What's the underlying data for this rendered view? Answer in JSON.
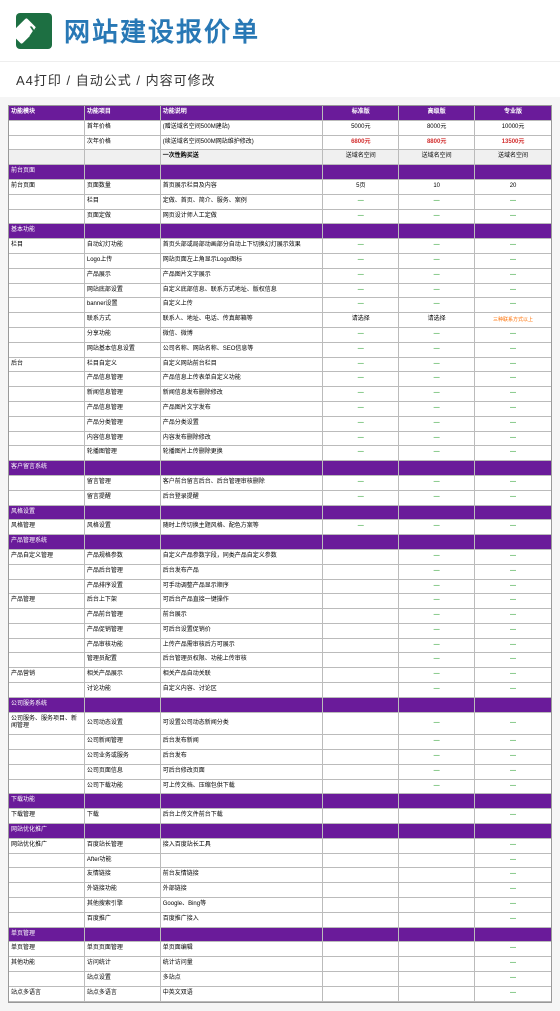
{
  "header": {
    "title": "网站建设报价单",
    "subtitle": "A4打印 / 自动公式 / 内容可修改"
  },
  "cols": [
    "功能模块",
    "功能项目",
    "功能说明",
    "标准版",
    "高级版",
    "专业版"
  ],
  "toprow1": {
    "c2": "首年价格",
    "c3": "(赠送域名空间500M建站)",
    "c4": "5000元",
    "c5": "8000元",
    "c6": "10000元"
  },
  "toprow2": {
    "c2": "次年价格",
    "c3": "(续送域名空间500M网站维护修改)",
    "c4": "6800元",
    "c5": "8800元",
    "c6": "13500元"
  },
  "toprow3": {
    "c2": "",
    "c3": "一次性购买送",
    "c4": "送域名空间",
    "c5": "送域名空间",
    "c6": "送域名空间"
  },
  "sections": [
    {
      "name": "前台页面",
      "rows": [
        {
          "m": "前台页面",
          "f": "页面数量",
          "d": "首页展示栏目及内容",
          "v": [
            "5页",
            "10",
            "20"
          ]
        },
        {
          "m": "",
          "f": "栏目",
          "d": "定做、首页、简介、服务、案例",
          "v": [
            "—",
            "—",
            "—"
          ]
        },
        {
          "m": "",
          "f": "页面定做",
          "d": "网页设计师人工定做",
          "v": [
            "—",
            "—",
            "—"
          ]
        }
      ]
    },
    {
      "name": "基本功能",
      "rows": [
        {
          "m": "栏目",
          "f": "自动幻灯功能",
          "d": "首页头部或局部动画部分自动上下切换幻灯展示效果",
          "v": [
            "—",
            "—",
            "—"
          ]
        },
        {
          "m": "",
          "f": "Logo上传",
          "d": "网站页面左上角显示Logo图标",
          "v": [
            "—",
            "—",
            "—"
          ]
        },
        {
          "m": "",
          "f": "产品展示",
          "d": "产品图片文字展示",
          "v": [
            "—",
            "—",
            "—"
          ]
        },
        {
          "m": "",
          "f": "网站底部设置",
          "d": "自定义底部信息、联系方式地址、版权信息",
          "v": [
            "—",
            "—",
            "—"
          ]
        },
        {
          "m": "",
          "f": "banner设置",
          "d": "自定义上传",
          "v": [
            "—",
            "—",
            "—"
          ]
        },
        {
          "m": "",
          "f": "联系方式",
          "d": "联系人、地址、电话、传真邮箱等",
          "v": [
            "请选择",
            "请选择",
            "三种联系方式以上"
          ]
        },
        {
          "m": "",
          "f": "分享功能",
          "d": "微信、微博",
          "v": [
            "—",
            "—",
            "—"
          ]
        },
        {
          "m": "",
          "f": "网站基本信息设置",
          "d": "公司名称、网站名称、SEO信息等",
          "v": [
            "—",
            "—",
            "—"
          ]
        },
        {
          "m": "后台",
          "f": "栏目自定义",
          "d": "自定义网站前台栏目",
          "v": [
            "—",
            "—",
            "—"
          ]
        },
        {
          "m": "",
          "f": "产品信息管理",
          "d": "产品信息上传表单自定义功能",
          "v": [
            "—",
            "—",
            "—"
          ]
        },
        {
          "m": "",
          "f": "新闻信息管理",
          "d": "新闻信息发布删除修改",
          "v": [
            "—",
            "—",
            "—"
          ]
        },
        {
          "m": "",
          "f": "产品信息管理",
          "d": "产品图片文字发布",
          "v": [
            "—",
            "—",
            "—"
          ]
        },
        {
          "m": "",
          "f": "产品分类管理",
          "d": "产品分类设置",
          "v": [
            "—",
            "—",
            "—"
          ]
        },
        {
          "m": "",
          "f": "内容信息管理",
          "d": "内容发布删除修改",
          "v": [
            "—",
            "—",
            "—"
          ]
        },
        {
          "m": "",
          "f": "轮播图管理",
          "d": "轮播图片上传删除更换",
          "v": [
            "—",
            "—",
            "—"
          ]
        }
      ]
    },
    {
      "name": "客户留言系统",
      "rows": [
        {
          "m": "",
          "f": "留言管理",
          "d": "客户前台留言后台、后台管理审核删除",
          "v": [
            "—",
            "—",
            "—"
          ]
        },
        {
          "m": "",
          "f": "留言提醒",
          "d": "后台登录提醒",
          "v": [
            "—",
            "—",
            "—"
          ]
        }
      ]
    },
    {
      "name": "风格设置",
      "rows": [
        {
          "m": "风格管理",
          "f": "风格设置",
          "d": "随时上传切换主题风格、配色方案等",
          "v": [
            "—",
            "—",
            "—"
          ]
        }
      ]
    },
    {
      "name": "产品管理系统",
      "rows": [
        {
          "m": "产品自定义管理",
          "f": "产品规格参数",
          "d": "自定义产品参数字段，同类产品自定义参数",
          "v": [
            "",
            "—",
            "—"
          ]
        },
        {
          "m": "",
          "f": "产品后台管理",
          "d": "后台发布产品",
          "v": [
            "",
            "—",
            "—"
          ]
        },
        {
          "m": "",
          "f": "产品排序设置",
          "d": "可手动调整产品显示顺序",
          "v": [
            "",
            "—",
            "—"
          ]
        },
        {
          "m": "产品管理",
          "f": "后台上下架",
          "d": "可后台产品直接一键操作",
          "v": [
            "",
            "—",
            "—"
          ]
        },
        {
          "m": "",
          "f": "产品前台管理",
          "d": "前台展示",
          "v": [
            "",
            "—",
            "—"
          ]
        },
        {
          "m": "",
          "f": "产品促销管理",
          "d": "可后台设置促销价",
          "v": [
            "",
            "—",
            "—"
          ]
        },
        {
          "m": "",
          "f": "产品审核功能",
          "d": "上传产品需审核后方可展示",
          "v": [
            "",
            "—",
            "—"
          ]
        },
        {
          "m": "",
          "f": "管理员配置",
          "d": "后台管理员权限、功能上传审核",
          "v": [
            "",
            "—",
            "—"
          ]
        },
        {
          "m": "产品营销",
          "f": "相关产品展示",
          "d": "相关产品自动关联",
          "v": [
            "",
            "—",
            "—"
          ]
        },
        {
          "m": "",
          "f": "讨论功能",
          "d": "自定义内容、讨论区",
          "v": [
            "",
            "—",
            "—"
          ]
        }
      ]
    },
    {
      "name": "公司服务系统",
      "rows": [
        {
          "m": "公司服务、服务项目、新闻管理",
          "f": "公司动态设置",
          "d": "可设置公司动态新闻分类",
          "v": [
            "",
            "—",
            "—"
          ]
        },
        {
          "m": "",
          "f": "公司新闻管理",
          "d": "后台发布新闻",
          "v": [
            "",
            "—",
            "—"
          ]
        },
        {
          "m": "",
          "f": "公司业务或服务",
          "d": "后台发布",
          "v": [
            "",
            "—",
            "—"
          ]
        },
        {
          "m": "",
          "f": "公司页面信息",
          "d": "可后台修改页面",
          "v": [
            "",
            "—",
            "—"
          ]
        },
        {
          "m": "",
          "f": "公司下载功能",
          "d": "可上传文档、压缩包供下载",
          "v": [
            "",
            "—",
            "—"
          ]
        }
      ]
    },
    {
      "name": "下载功能",
      "rows": [
        {
          "m": "下载管理",
          "f": "下载",
          "d": "后台上传文件前台下载",
          "v": [
            "",
            "",
            "—"
          ]
        }
      ]
    },
    {
      "name": "网站优化推广",
      "rows": [
        {
          "m": "网站优化推广",
          "f": "百度站长管理",
          "d": "接入百度站长工具",
          "v": [
            "",
            "",
            "—"
          ]
        },
        {
          "m": "",
          "f": "After功能",
          "d": "",
          "v": [
            "",
            "",
            "—"
          ]
        },
        {
          "m": "",
          "f": "友情链接",
          "d": "前台友情链接",
          "v": [
            "",
            "",
            "—"
          ]
        },
        {
          "m": "",
          "f": "外链接功能",
          "d": "外部链接",
          "v": [
            "",
            "",
            "—"
          ]
        },
        {
          "m": "",
          "f": "其他搜索引擎",
          "d": "Google、Bing等",
          "v": [
            "",
            "",
            "—"
          ]
        },
        {
          "m": "",
          "f": "百度推广",
          "d": "百度推广接入",
          "v": [
            "",
            "",
            "—"
          ]
        }
      ]
    },
    {
      "name": "单页管理",
      "rows": [
        {
          "m": "单页管理",
          "f": "单页页面管理",
          "d": "单页面编辑",
          "v": [
            "",
            "",
            "—"
          ]
        },
        {
          "m": "其他功能",
          "f": "访问统计",
          "d": "统计访问量",
          "v": [
            "",
            "",
            "—"
          ]
        },
        {
          "m": "",
          "f": "站点设置",
          "d": "多站点",
          "v": [
            "",
            "",
            "—"
          ]
        },
        {
          "m": "站点多语言",
          "f": "站点多语言",
          "d": "中英文双语",
          "v": [
            "",
            "",
            "—"
          ]
        }
      ]
    }
  ]
}
